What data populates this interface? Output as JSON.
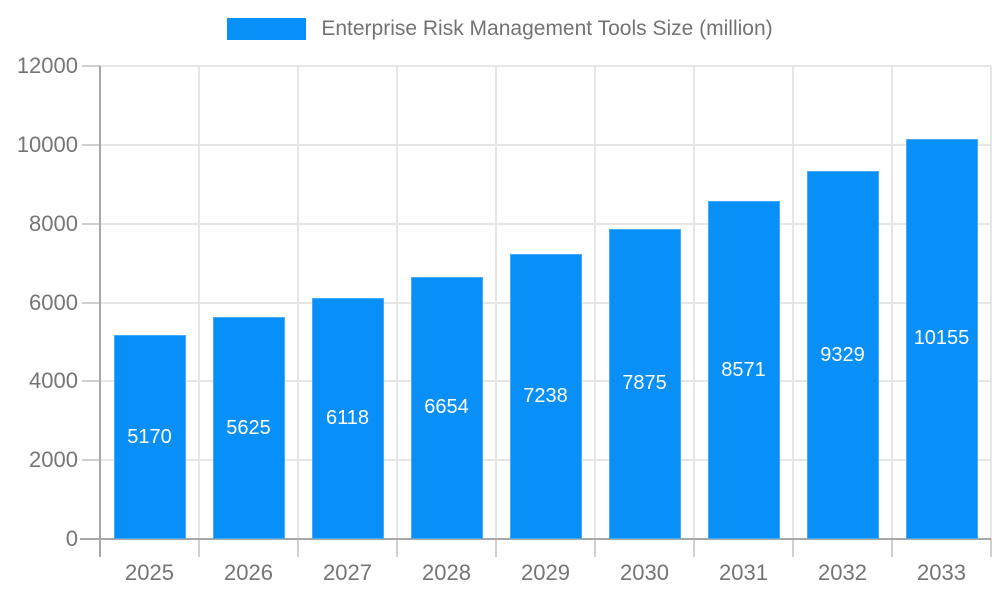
{
  "legend": {
    "label": "Enterprise Risk Management Tools Size (million)"
  },
  "chart_data": {
    "type": "bar",
    "title": "",
    "categories": [
      "2025",
      "2026",
      "2027",
      "2028",
      "2029",
      "2030",
      "2031",
      "2032",
      "2033"
    ],
    "values": [
      5170,
      5625,
      6118,
      6654,
      7238,
      7875,
      8571,
      9329,
      10155
    ],
    "series_name": "Enterprise Risk Management Tools Size (million)",
    "xlabel": "",
    "ylabel": "",
    "ylim": [
      0,
      12000
    ],
    "yticks": [
      0,
      2000,
      4000,
      6000,
      8000,
      10000,
      12000
    ],
    "grid": true,
    "legend_position": "top",
    "bar_value_labels": "inside-center",
    "colors": {
      "bar": "#0990f8",
      "bar_value_text": "#ffffff",
      "axis_text": "#757575",
      "gridline": "#e6e6e6",
      "tick": "#d0d0d0",
      "axis_line": "#a8a8a8",
      "background": "#ffffff"
    }
  }
}
